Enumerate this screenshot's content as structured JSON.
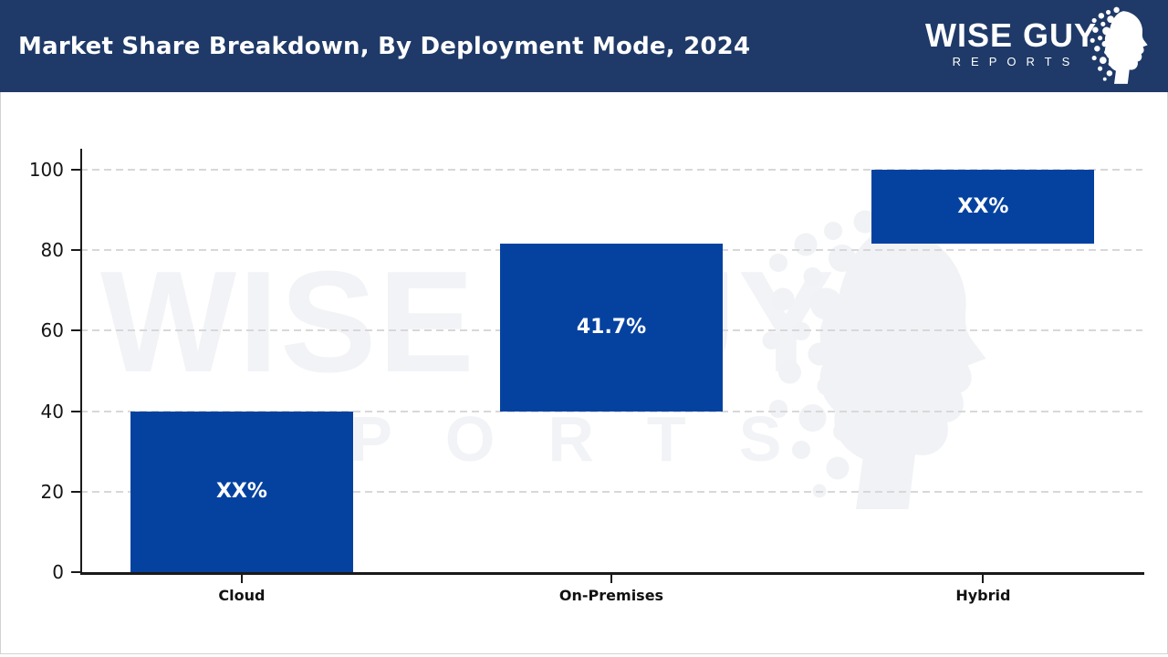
{
  "header": {
    "title": "Market Share Breakdown, By Deployment Mode, 2024",
    "logo": {
      "name_line": "WISE GUY",
      "sub_line": "REPORTS"
    }
  },
  "watermark": {
    "name_line": "WISE GUY",
    "sub_line": "REPORTS"
  },
  "chart_data": {
    "type": "bar",
    "subtype": "floating-segment-bars (waterfall-style market share)",
    "title": "Market Share Breakdown, By Deployment Mode, 2024",
    "categories": [
      "Cloud",
      "On-Premises",
      "Hybrid"
    ],
    "segments": [
      {
        "category": "Cloud",
        "start": 0,
        "end": 40,
        "value_label": "XX%"
      },
      {
        "category": "On-Premises",
        "start": 40,
        "end": 81.7,
        "value_label": "41.7%"
      },
      {
        "category": "Hybrid",
        "start": 81.7,
        "end": 100,
        "value_label": "XX%"
      }
    ],
    "xlabel": "",
    "ylabel": "",
    "ylim": [
      0,
      100
    ],
    "yticks": [
      0,
      20,
      40,
      60,
      80,
      100
    ],
    "grid": {
      "horizontal": true,
      "style": "dashed",
      "color": "#d8d8d8"
    },
    "legend": "none",
    "colors": {
      "bar": "#0542a0",
      "bar_label": "#ffffff",
      "axis_text": "#141414",
      "header_bg": "#1f3a68",
      "watermark": "#f2f3f6"
    }
  }
}
